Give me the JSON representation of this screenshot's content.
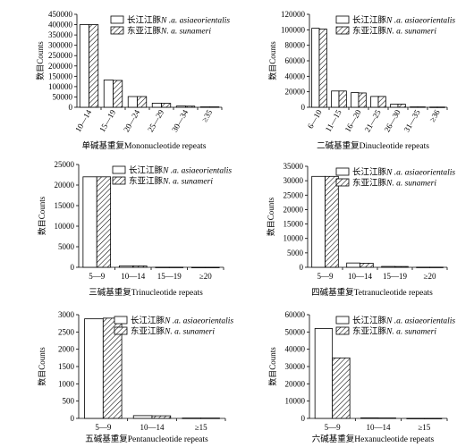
{
  "legend_labels": [
    {
      "cn": "长江江豚",
      "latin": "N .a. asiaeorientalis"
    },
    {
      "cn": "东亚江豚",
      "latin": "N. a. sunameri"
    }
  ],
  "colors": {
    "series1_fill": "#ffffff",
    "series2_hatch": "#000000",
    "axis": "#000000"
  },
  "chart_data": [
    {
      "type": "bar",
      "caption": "单碱基重复Mononucleotide repeats",
      "ylabel": "数目Counts",
      "categories": [
        "10—14",
        "15—19",
        "20—24",
        "25—29",
        "30—34",
        "≥35"
      ],
      "series": [
        {
          "name": "长江江豚N .a. asiaeorientalis",
          "values": [
            400000,
            132000,
            52000,
            20000,
            6000,
            2000
          ]
        },
        {
          "name": "东亚江豚N. a. sunameri",
          "values": [
            400000,
            130000,
            52000,
            19000,
            5500,
            2000
          ]
        }
      ],
      "ylim": [
        0,
        450000
      ],
      "yticks": [
        0,
        50000,
        100000,
        150000,
        200000,
        250000,
        300000,
        350000,
        400000,
        450000
      ],
      "rotate_x": true,
      "legend_position": "top-right"
    },
    {
      "type": "bar",
      "caption": "二碱基重复Dinucleotide repeats",
      "ylabel": "数目Counts",
      "categories": [
        "6—10",
        "11—15",
        "16—20",
        "21—25",
        "26—30",
        "31—35",
        "≥36"
      ],
      "series": [
        {
          "name": "长江江豚N .a. asiaeorientalis",
          "values": [
            102000,
            21000,
            19000,
            14000,
            4000,
            500,
            300
          ]
        },
        {
          "name": "东亚江豚N. a. sunameri",
          "values": [
            101000,
            21000,
            18500,
            14000,
            4000,
            500,
            300
          ]
        }
      ],
      "ylim": [
        0,
        120000
      ],
      "yticks": [
        0,
        20000,
        40000,
        60000,
        80000,
        100000,
        120000
      ],
      "rotate_x": true,
      "legend_position": "top-right"
    },
    {
      "type": "bar",
      "caption": "三碱基重复Trinucleotide repeats",
      "ylabel": "数目Counts",
      "categories": [
        "5—9",
        "10—14",
        "15—19",
        "≥20"
      ],
      "series": [
        {
          "name": "长江江豚N .a. asiaeorientalis",
          "values": [
            22000,
            350,
            30,
            10
          ]
        },
        {
          "name": "东亚江豚N. a. sunameri",
          "values": [
            22000,
            350,
            30,
            10
          ]
        }
      ],
      "ylim": [
        0,
        25000
      ],
      "yticks": [
        0,
        5000,
        10000,
        15000,
        20000,
        25000
      ],
      "rotate_x": false,
      "legend_position": "top-right"
    },
    {
      "type": "bar",
      "caption": "四碱基重复Tetranucleotide repeats",
      "ylabel": "数目Counts",
      "categories": [
        "5—9",
        "10—14",
        "15—19",
        "≥20"
      ],
      "series": [
        {
          "name": "长江江豚N .a. asiaeorientalis",
          "values": [
            31500,
            1500,
            300,
            50
          ]
        },
        {
          "name": "东亚江豚N. a. sunameri",
          "values": [
            31500,
            1400,
            280,
            50
          ]
        }
      ],
      "ylim": [
        0,
        35000
      ],
      "yticks": [
        0,
        5000,
        10000,
        15000,
        20000,
        25000,
        30000,
        35000
      ],
      "rotate_x": false,
      "legend_position": "top-right"
    },
    {
      "type": "bar",
      "caption": "五碱基重复Pentanucleotide repeats",
      "ylabel": "数目Counts",
      "categories": [
        "5—9",
        "10—14",
        "≥15"
      ],
      "series": [
        {
          "name": "长江江豚N .a. asiaeorientalis",
          "values": [
            2880,
            80,
            10
          ]
        },
        {
          "name": "东亚江豚N. a. sunameri",
          "values": [
            2900,
            75,
            10
          ]
        }
      ],
      "ylim": [
        0,
        3000
      ],
      "yticks": [
        0,
        500,
        1000,
        1500,
        2000,
        2500,
        3000
      ],
      "rotate_x": false,
      "legend_position": "top-right"
    },
    {
      "type": "bar",
      "caption": "六碱基重复Hexanucleotide repeats",
      "ylabel": "数目Counts",
      "categories": [
        "5—9",
        "10—14",
        "≥15"
      ],
      "series": [
        {
          "name": "长江江豚N .a. asiaeorientalis",
          "values": [
            52000,
            300,
            50
          ]
        },
        {
          "name": "东亚江豚N. a. sunameri",
          "values": [
            35000,
            250,
            40
          ]
        }
      ],
      "ylim": [
        0,
        60000
      ],
      "yticks": [
        0,
        10000,
        20000,
        30000,
        40000,
        50000,
        60000
      ],
      "rotate_x": false,
      "legend_position": "top-right"
    }
  ]
}
